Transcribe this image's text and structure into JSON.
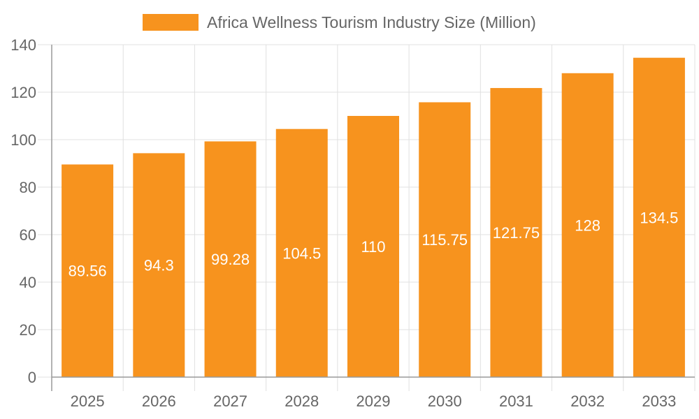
{
  "chart_data": {
    "type": "bar",
    "categories": [
      "2025",
      "2026",
      "2027",
      "2028",
      "2029",
      "2030",
      "2031",
      "2032",
      "2033"
    ],
    "series": [
      {
        "name": "Africa Wellness Tourism Industry Size (Million)",
        "values": [
          89.56,
          94.3,
          99.28,
          104.5,
          110,
          115.75,
          121.75,
          128,
          134.5
        ]
      }
    ],
    "data_labels": [
      "89.56",
      "94.3",
      "99.28",
      "104.5",
      "110",
      "115.75",
      "121.75",
      "128",
      "134.5"
    ],
    "yticks": [
      "0",
      "20",
      "40",
      "60",
      "80",
      "100",
      "120",
      "140"
    ],
    "ylim": [
      0,
      140
    ],
    "grid": true,
    "legend_position": "top",
    "colors": {
      "bar": "#F7931E",
      "grid": "#e0e0e0",
      "axis": "#999999",
      "text": "#666666",
      "label": "#ffffff"
    }
  }
}
